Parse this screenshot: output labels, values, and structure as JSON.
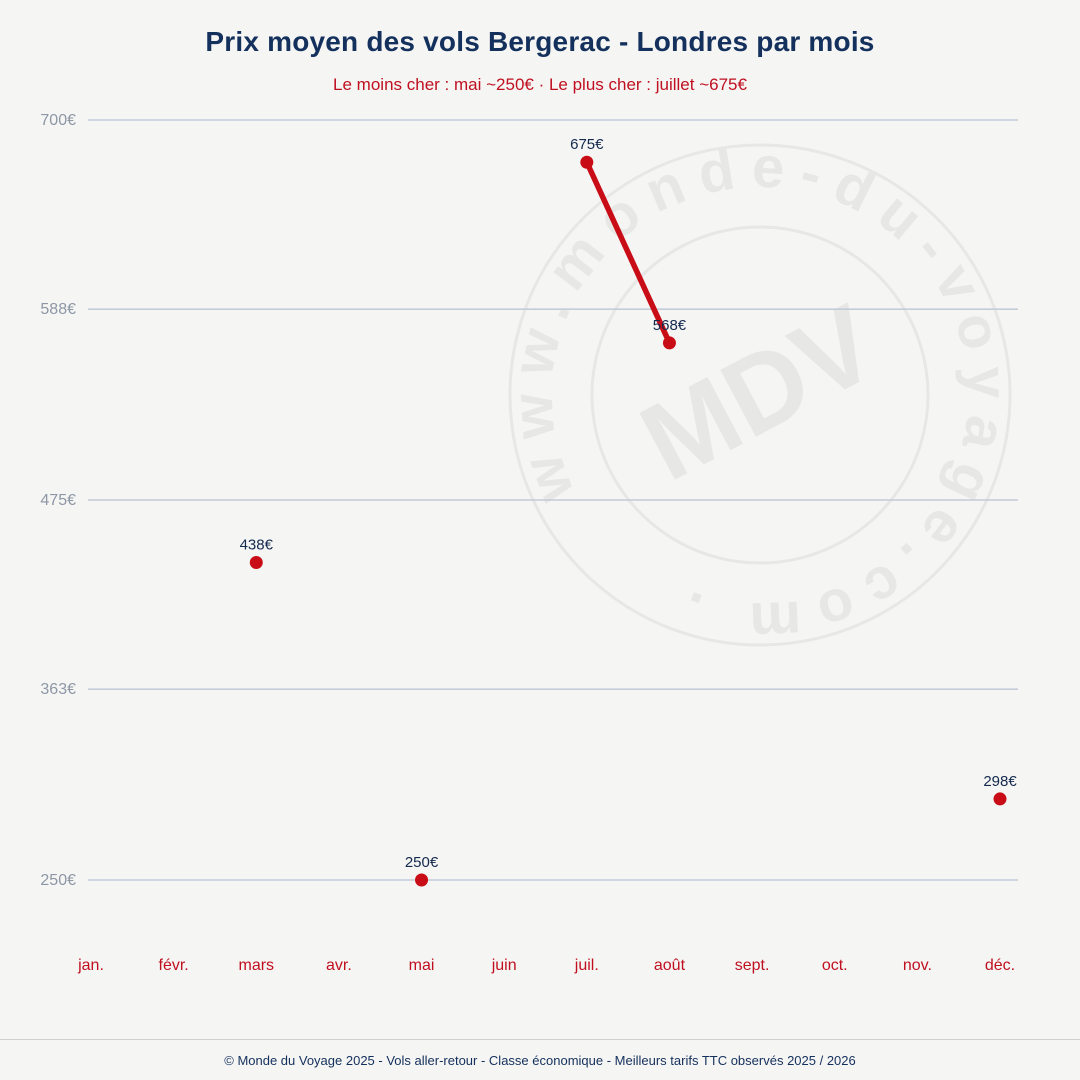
{
  "header": {
    "title": "Prix moyen des vols Bergerac - Londres par mois",
    "subtitle": "Le moins cher : mai ~250€ · Le plus cher : juillet ~675€"
  },
  "chart_data": {
    "type": "line",
    "title": "Prix moyen des vols Bergerac - Londres par mois",
    "categories": [
      "jan.",
      "févr.",
      "mars",
      "avr.",
      "mai",
      "juin",
      "juil.",
      "août",
      "sept.",
      "oct.",
      "nov.",
      "déc."
    ],
    "values": [
      null,
      null,
      438,
      null,
      250,
      null,
      675,
      568,
      null,
      null,
      null,
      298
    ],
    "point_labels": [
      "",
      "",
      "438€",
      "",
      "250€",
      "",
      "675€",
      "568€",
      "",
      "",
      "",
      "298€"
    ],
    "y_ticks": [
      700,
      588,
      475,
      363,
      250
    ],
    "y_tick_labels": [
      "700€",
      "588€",
      "475€",
      "363€",
      "250€"
    ],
    "ylim": [
      250,
      700
    ],
    "grid": true,
    "legend": "none",
    "colors": {
      "line": "#c90d17",
      "point": "#c90d17",
      "point_label": "#13294d",
      "axis_text": "#8e97a5",
      "month_text": "#c01020",
      "gridline": "#c4ccd9"
    }
  },
  "watermark": {
    "circle_text": "www.monde-du-voyage.com .",
    "center_text": "MDV"
  },
  "footer": {
    "text": "© Monde du Voyage 2025 - Vols aller-retour - Classe économique - Meilleurs tarifs TTC observés 2025 / 2026"
  }
}
